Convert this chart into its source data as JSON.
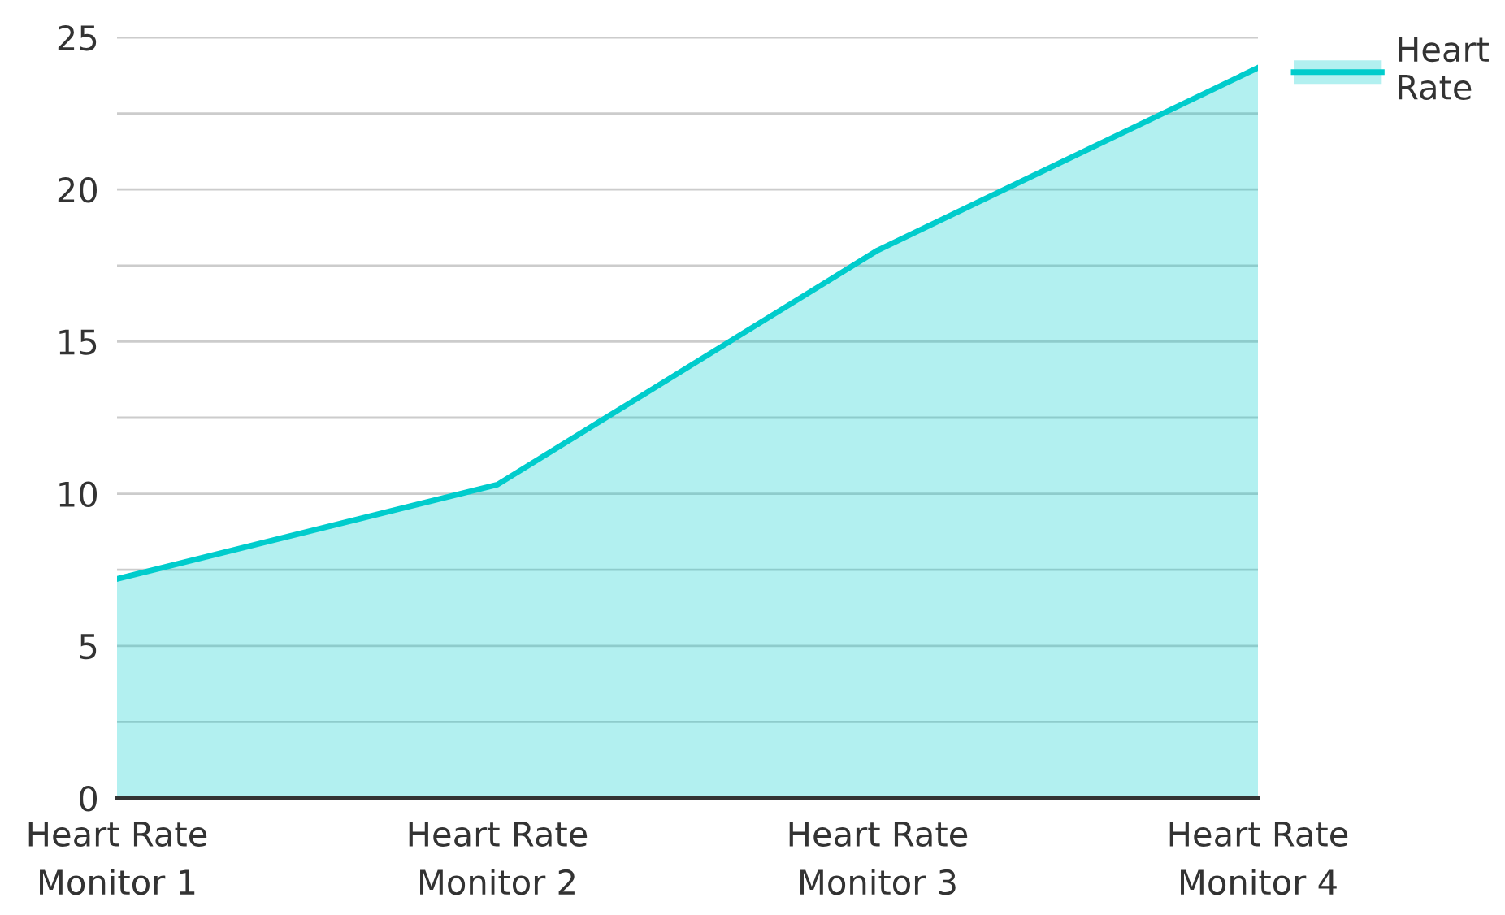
{
  "chart_data": {
    "type": "area",
    "categories": [
      "Heart Rate\nMonitor 1",
      "Heart Rate\nMonitor 2",
      "Heart Rate\nMonitor 3",
      "Heart Rate\nMonitor 4"
    ],
    "series": [
      {
        "name": "Heart\nRate",
        "color": "#00cccc",
        "values": [
          7.2,
          10.3,
          18,
          24
        ]
      }
    ],
    "ylim": [
      0,
      25
    ],
    "yticks": [
      0,
      {
        "value": 2.5,
        "label": null
      },
      5,
      {
        "value": 7.5,
        "label": null
      },
      10,
      {
        "value": 12.5,
        "label": null
      },
      15,
      {
        "value": 17.5,
        "label": null
      },
      20,
      {
        "value": 22.5,
        "label": null
      },
      25
    ],
    "grid": "y",
    "legend": "top right"
  }
}
